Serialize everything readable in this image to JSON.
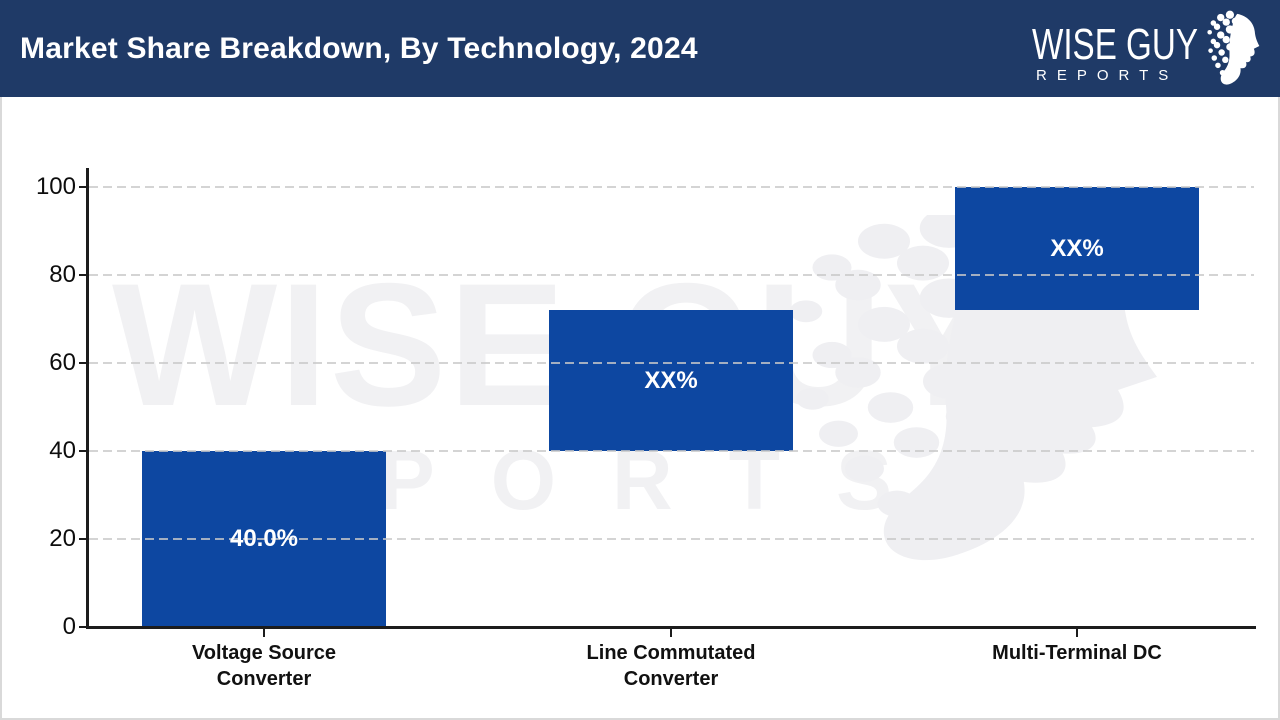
{
  "header": {
    "title": "Market Share Breakdown, By Technology, 2024",
    "logo": {
      "name": "WISE GUY",
      "sub": "REPORTS"
    }
  },
  "watermark": {
    "line1": "WISE GUY",
    "line2": "REPORTS"
  },
  "chart_data": {
    "type": "bar",
    "subtype": "floating-stepped-waterfall",
    "title": "Market Share Breakdown, By Technology, 2024",
    "categories": [
      "Voltage Source\nConverter",
      "Line Commutated\nConverter",
      "Multi-Terminal DC"
    ],
    "segments": [
      {
        "category": "Voltage Source Converter",
        "start": 0,
        "end": 40,
        "value_label": "40.0%"
      },
      {
        "category": "Line Commutated Converter",
        "start": 40,
        "end": 72,
        "value_label": "XX%"
      },
      {
        "category": "Multi-Terminal DC",
        "start": 72,
        "end": 100,
        "value_label": "XX%"
      }
    ],
    "yticks": [
      0,
      20,
      40,
      60,
      80,
      100
    ],
    "ylim": [
      0,
      104
    ],
    "xlabel": "",
    "ylabel": "",
    "grid": {
      "horizontal": true,
      "style": "dashed",
      "drawn_over_bars": true
    },
    "legend": "none",
    "colors": {
      "bar": "#0d47a1",
      "value_label": "#ffffff",
      "grid": "#c9c9c9",
      "axis": "#1c1c1c",
      "tick_label": "#111111"
    }
  },
  "colors": {
    "header_bg": "#1f3a67",
    "header_text": "#ffffff",
    "body_bg": "#ffffff",
    "frame_border": "#d9d9d9",
    "watermark": "#f1f1f3"
  }
}
